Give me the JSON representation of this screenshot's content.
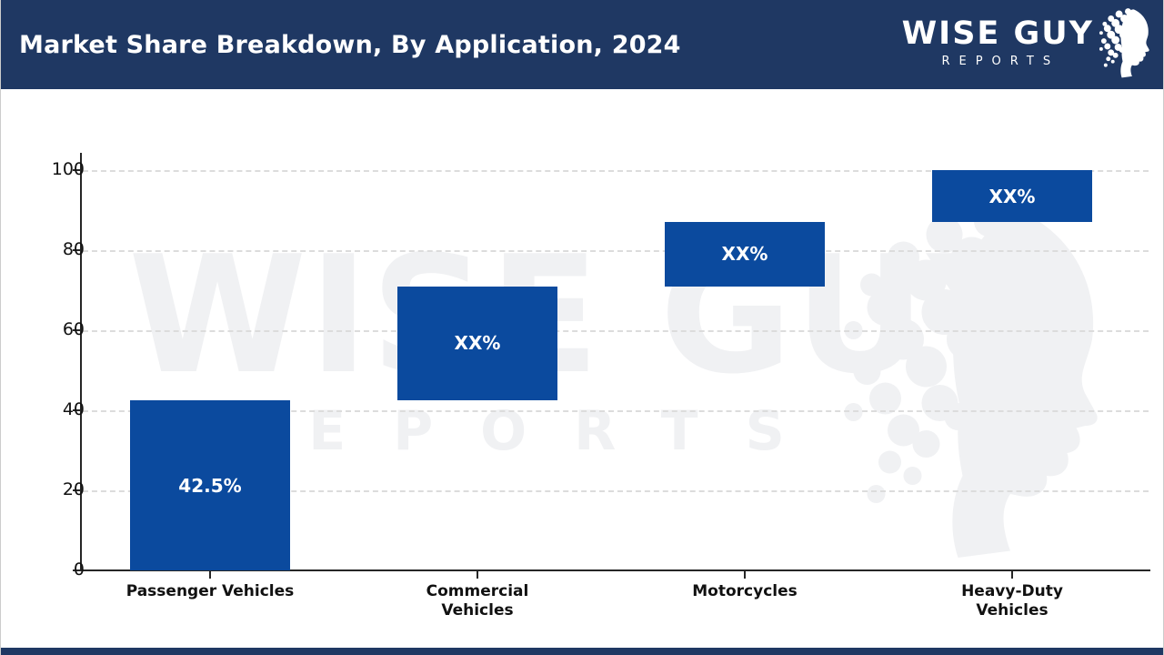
{
  "header": {
    "title": "Market Share Breakdown, By Application, 2024",
    "logo": {
      "line1": "WISE GUY",
      "line2": "REPORTS"
    }
  },
  "watermark": {
    "line1": "WISE GUY",
    "line2": "REPORTS"
  },
  "colors": {
    "header_bg": "#1f3863",
    "footer_bg": "#1f3863",
    "bar": "#0b4a9e",
    "bar_label_text": "#ffffff",
    "gridline": "#dcdcdc",
    "axis": "#262626",
    "watermark": "#f0f1f3"
  },
  "chart_data": {
    "type": "bar",
    "subtype": "waterfall",
    "title": "Market Share Breakdown, By Application, 2024",
    "categories": [
      "Passenger Vehicles",
      "Commercial Vehicles",
      "Motorcycles",
      "Heavy-Duty Vehicles"
    ],
    "categories_display": [
      "Passenger Vehicles",
      "Commercial\nVehicles",
      "Motorcycles",
      "Heavy-Duty\nVehicles"
    ],
    "segments": [
      {
        "category": "Passenger Vehicles",
        "start": 0,
        "end": 42.5,
        "value": 42.5,
        "label": "42.5%"
      },
      {
        "category": "Commercial Vehicles",
        "start": 42.5,
        "end": 71,
        "value": 28.5,
        "label": "XX%"
      },
      {
        "category": "Motorcycles",
        "start": 71,
        "end": 87,
        "value": 16,
        "label": "XX%"
      },
      {
        "category": "Heavy-Duty Vehicles",
        "start": 87,
        "end": 100,
        "value": 13,
        "label": "XX%"
      }
    ],
    "yticks": [
      0,
      20,
      40,
      60,
      80,
      100
    ],
    "ylim": [
      0,
      100
    ],
    "xlabel": "",
    "ylabel": "",
    "grid": "horizontal-dashed",
    "legend": "none"
  }
}
